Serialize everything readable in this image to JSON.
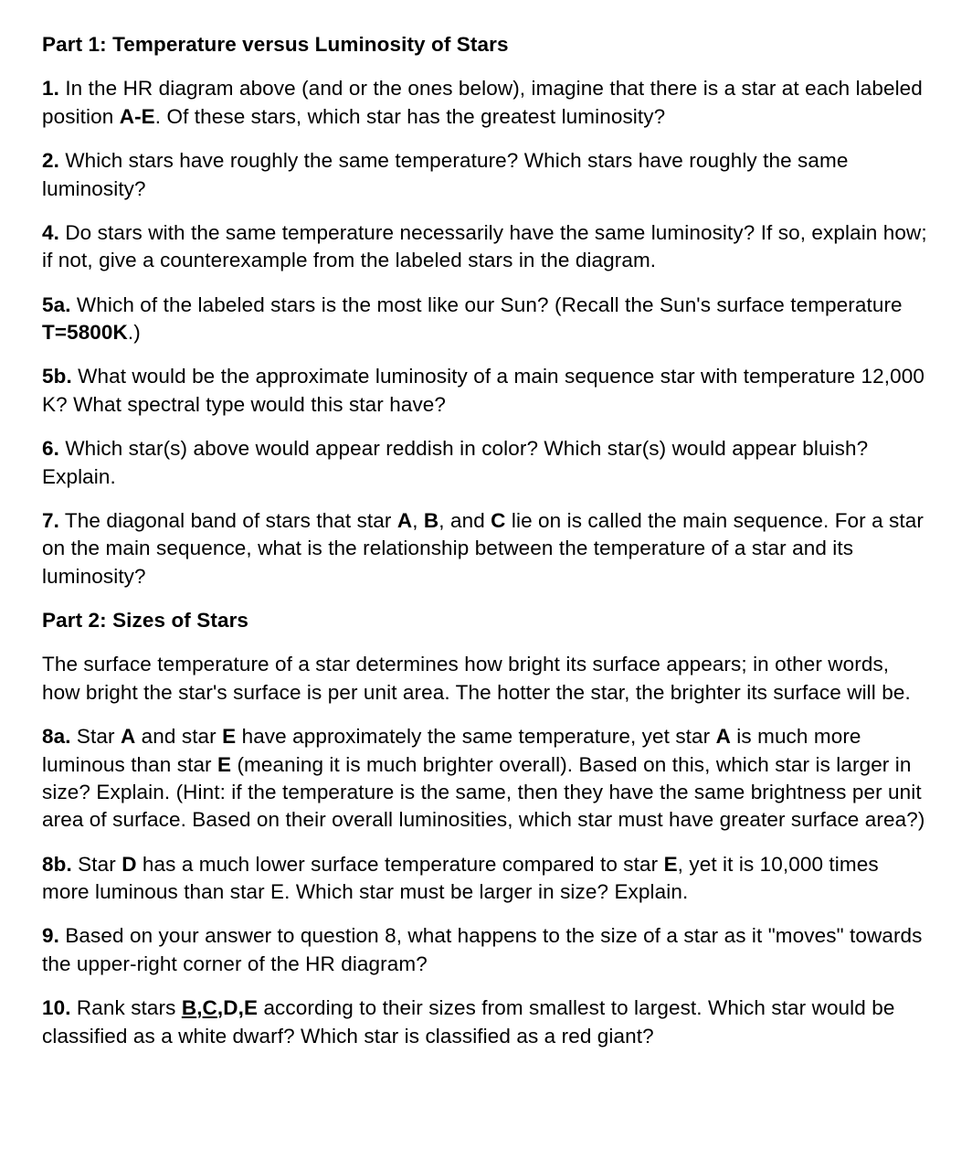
{
  "part1": {
    "heading": "Part 1: Temperature versus Luminosity of Stars",
    "q1": {
      "num": "1.",
      "t1": " In the HR diagram above (and or the ones below), imagine that there is a star at each labeled position ",
      "AE": "A-E",
      "t2": ". Of these stars, which star has the greatest luminosity?"
    },
    "q2": {
      "num": "2.",
      "text": " Which stars have roughly the same temperature? Which stars have roughly the same luminosity?"
    },
    "q4": {
      "num": "4.",
      "text": " Do stars with the same temperature necessarily have the same luminosity? If so, explain how; if not, give a counterexample from the labeled stars in the diagram."
    },
    "q5a": {
      "num": "5a.",
      "t1": " Which of the labeled stars is the most like our Sun? (Recall the Sun's surface temperature ",
      "TK": "T=5800K",
      "t2": ".)"
    },
    "q5b": {
      "num": "5b.",
      "text": " What would be the approximate luminosity of a main sequence star with temperature 12,000 K? What spectral type would this star have?"
    },
    "q6": {
      "num": "6.",
      "text": " Which star(s) above would appear reddish in color? Which star(s) would appear bluish? Explain."
    },
    "q7": {
      "num": "7.",
      "t1": " The diagonal band of stars that star ",
      "A": "A",
      "c1": ", ",
      "B": "B",
      "c2": ", and ",
      "C": "C",
      "t2": " lie on is called the main sequence. For a star on the main sequence, what is the relationship between the temperature of a star and its luminosity?"
    }
  },
  "part2": {
    "heading": "Part 2: Sizes of Stars",
    "intro": "The surface temperature of a star determines how bright its surface appears; in other words, how bright the star's surface is per unit area. The hotter the star, the brighter its surface will be.",
    "q8a": {
      "num": "8a.",
      "t1": " Star ",
      "A1": "A",
      "t2": " and star ",
      "E1": "E",
      "t3": " have approximately the same temperature, yet star ",
      "A2": "A",
      "t4": " is much more luminous than star ",
      "E2": "E",
      "t5": " (meaning it is much brighter overall). Based on this, which star is larger in size? Explain. (Hint: if the temperature is the same, then they have the same brightness per unit area of surface. Based on their overall luminosities, which star must have greater surface area?)"
    },
    "q8b": {
      "num": "8b.",
      "t1": " Star ",
      "D": "D",
      "t2": " has a much lower surface temperature compared to star ",
      "E": "E",
      "t3": ", yet it is 10,000 times more luminous than star E. Which star must be larger in size? Explain."
    },
    "q9": {
      "num": "9.",
      "text": " Based on your answer to question 8, what happens to the size of a star as it \"moves\" towards the upper-right corner of the HR diagram?"
    },
    "q10": {
      "num": "10.",
      "t1": " Rank stars ",
      "B": "B",
      "c1": ",",
      "C": "C",
      "c2": ",",
      "D": "D",
      "c3": ",",
      "E": "E",
      "t2": " according to their sizes from smallest to largest. Which star would be classified as a white dwarf? Which star is classified as a red giant?"
    }
  }
}
